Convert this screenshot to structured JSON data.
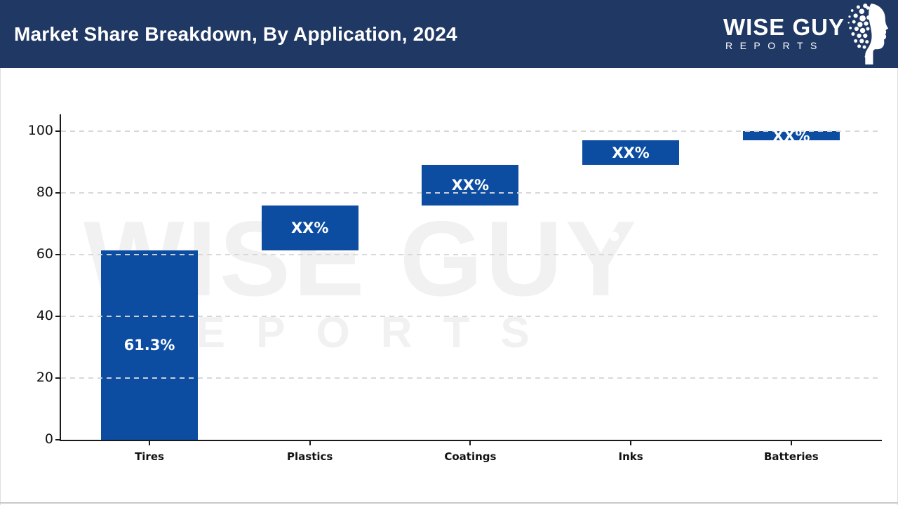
{
  "header": {
    "title": "Market Share Breakdown, By Application, 2024",
    "logo": {
      "primary": "WISE GUY",
      "secondary": "REPORTS"
    }
  },
  "watermark": {
    "line1": "WISE GUY",
    "line2": "REPORTS"
  },
  "colors": {
    "header_bg": "#203864",
    "bar": "#0c4da2",
    "bar_label": "#ffffff",
    "gridline": "#d6d6d6",
    "axis": "#1a1a1a",
    "watermark": "#f1f1f1"
  },
  "chart_data": {
    "type": "bar",
    "subtype": "waterfall",
    "title": "Market Share Breakdown, By Application, 2024",
    "categories": [
      "Tires",
      "Plastics",
      "Coatings",
      "Inks",
      "Batteries"
    ],
    "segments": [
      {
        "category": "Tires",
        "start": 0,
        "end": 61.3,
        "label": "61.3%"
      },
      {
        "category": "Plastics",
        "start": 61.3,
        "end": 76,
        "label": "XX%"
      },
      {
        "category": "Coatings",
        "start": 76,
        "end": 89,
        "label": "XX%"
      },
      {
        "category": "Inks",
        "start": 89,
        "end": 97,
        "label": "XX%"
      },
      {
        "category": "Batteries",
        "start": 97,
        "end": 100,
        "label": "XX%"
      }
    ],
    "xlabel": "",
    "ylabel": "",
    "yticks": [
      0,
      20,
      40,
      60,
      80,
      100
    ],
    "ylim": [
      0,
      105
    ],
    "grid": true,
    "grid_style": "dashed",
    "legend": "none"
  }
}
